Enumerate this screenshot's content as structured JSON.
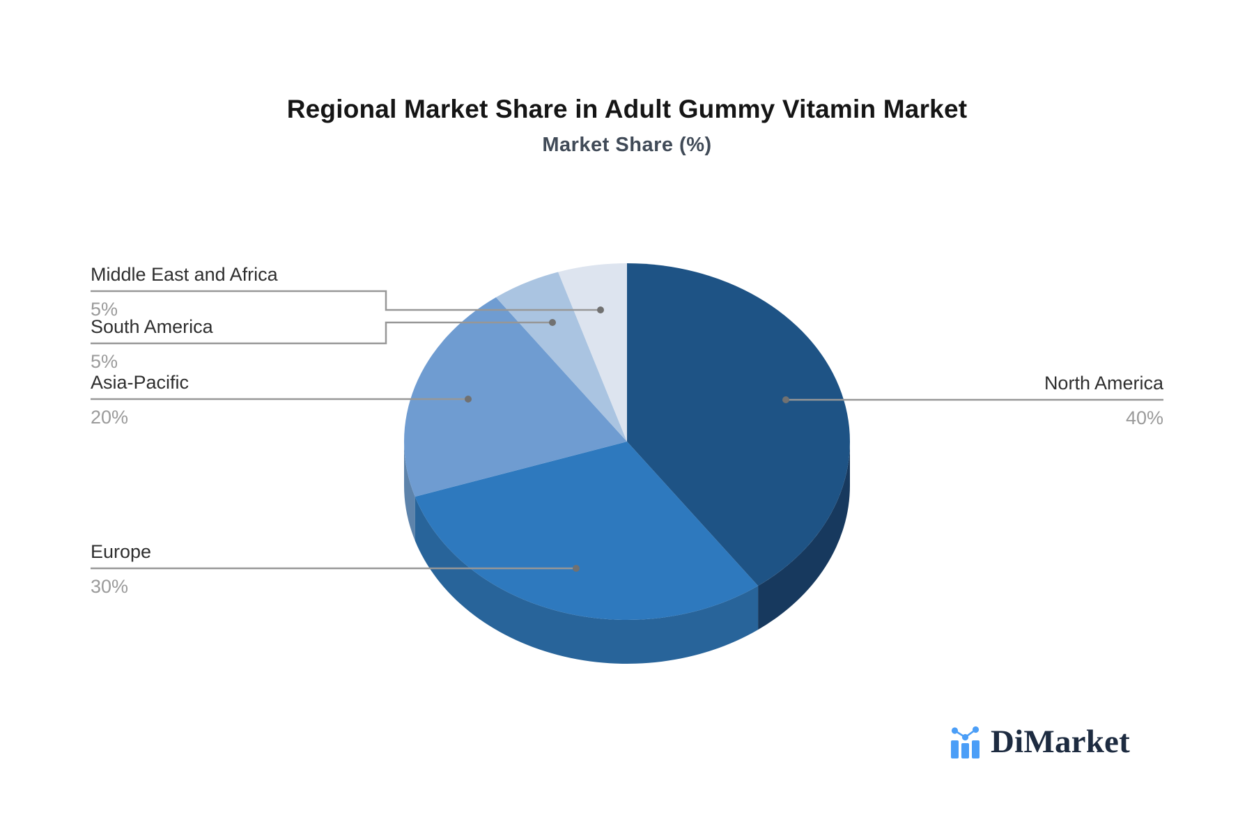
{
  "chart_data": {
    "type": "pie",
    "title": "Regional Market Share in Adult Gummy Vitamin Market",
    "subtitle": "Market Share (%)",
    "unit": "%",
    "style": "3d-pie",
    "start_angle_deg": 0,
    "direction": "clockwise",
    "categories": [
      "North America",
      "Europe",
      "Asia-Pacific",
      "South America",
      "Middle East and Africa"
    ],
    "values": [
      40,
      30,
      20,
      5,
      5
    ],
    "slices": [
      {
        "name": "North America",
        "value": 40,
        "label": "40%",
        "color": "#1e5385",
        "side_color": "#17395e",
        "label_side": "right"
      },
      {
        "name": "Europe",
        "value": 30,
        "label": "30%",
        "color": "#2e79be",
        "side_color": "#28649a",
        "label_side": "left"
      },
      {
        "name": "Asia-Pacific",
        "value": 20,
        "label": "20%",
        "color": "#6f9cd1",
        "side_color": "#5d83ab",
        "label_side": "left"
      },
      {
        "name": "South America",
        "value": 5,
        "label": "5%",
        "color": "#aac4e1",
        "side_color": "#8fa9c4",
        "label_side": "left"
      },
      {
        "name": "Middle East and Africa",
        "value": 5,
        "label": "5%",
        "color": "#dde4ef",
        "side_color": "#b9c4d6",
        "label_side": "left"
      }
    ],
    "leader_line_color": "#979797",
    "label_name_color": "#2e2e2e",
    "label_value_color": "#9a9a9a"
  },
  "branding": {
    "logo_text": "DiMarket",
    "logo_icon": "mini-bar-line-chart-icon",
    "logo_icon_color": "#4b9ef7",
    "logo_text_color": "#1d2b40"
  }
}
